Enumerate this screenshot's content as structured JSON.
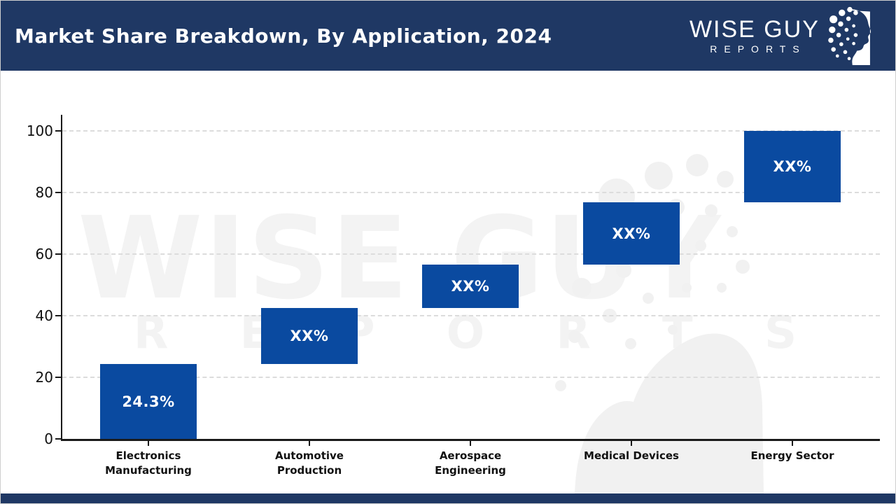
{
  "header": {
    "title": "Market Share Breakdown, By Application, 2024",
    "logo": {
      "line1": "WISE GUY",
      "line2": "REPORTS"
    }
  },
  "watermark": {
    "line1": "WISE GUY",
    "line2": "R E P O R T S"
  },
  "chart_data": {
    "type": "bar",
    "subtype": "waterfall",
    "title": "Market Share Breakdown, By Application, 2024",
    "categories": [
      "Electronics Manufacturing",
      "Automotive Production",
      "Aerospace Engineering",
      "Medical Devices",
      "Energy Sector"
    ],
    "segments": [
      {
        "label": "24.3%",
        "start": 0,
        "end": 24.3
      },
      {
        "label": "XX%",
        "start": 24.3,
        "end": 42.4
      },
      {
        "label": "XX%",
        "start": 42.4,
        "end": 56.6
      },
      {
        "label": "XX%",
        "start": 56.6,
        "end": 76.8
      },
      {
        "label": "XX%",
        "start": 76.8,
        "end": 100
      }
    ],
    "yticks": [
      0,
      20,
      40,
      60,
      80,
      100
    ],
    "ylim": [
      0,
      100
    ],
    "grid": "dashed-horizontal",
    "legend": "none",
    "bar_color": "#0a4aa0",
    "header_color": "#1f3864"
  }
}
